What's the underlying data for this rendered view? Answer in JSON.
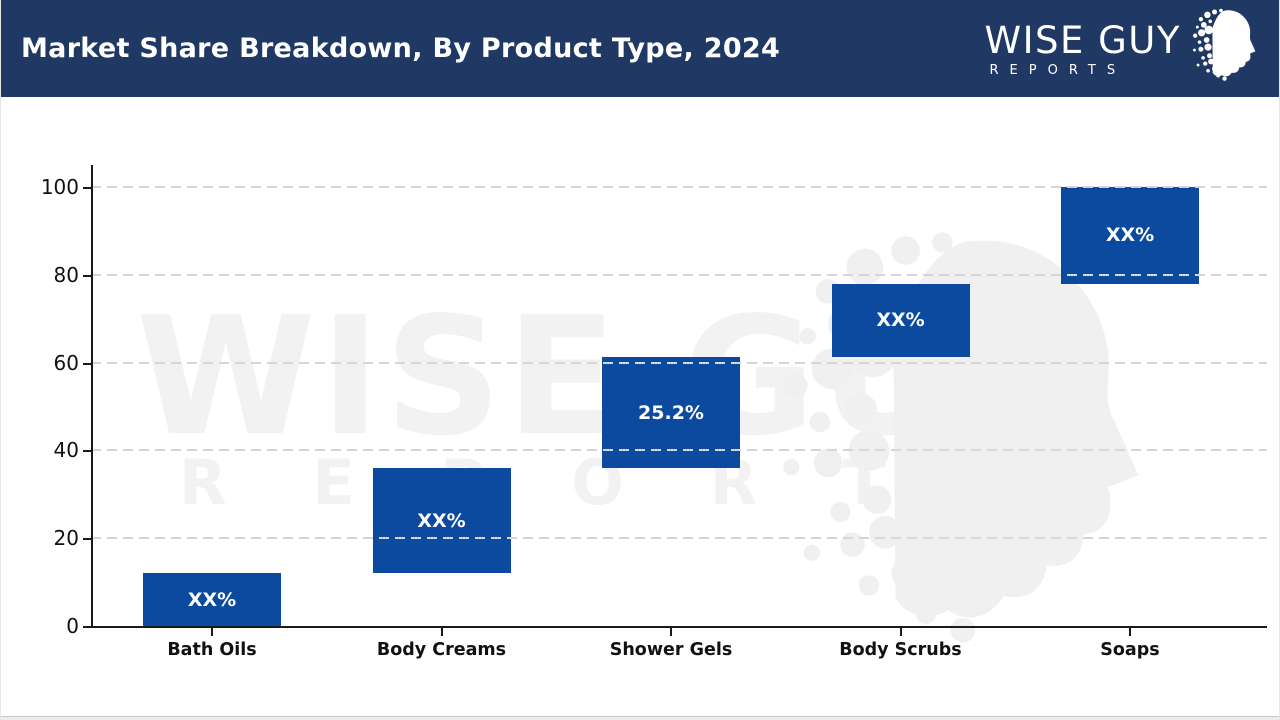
{
  "header": {
    "title": "Market Share Breakdown, By Product Type, 2024",
    "logo": {
      "line1": "WISE GUY",
      "line2": "REPORTS"
    }
  },
  "watermark": {
    "line1": "WISE GUY",
    "line2": "R E P O R T S"
  },
  "colors": {
    "header_bg": "#203864",
    "bar": "#0b4a9f",
    "gridline": "#d6d6d6",
    "watermark": "#f2f2f2"
  },
  "chart_data": {
    "type": "bar",
    "variant": "waterfall",
    "title": "Market Share Breakdown, By Product Type, 2024",
    "xlabel": "",
    "ylabel": "",
    "ylim": [
      0,
      105
    ],
    "yticks": [
      0,
      20,
      40,
      60,
      80,
      100
    ],
    "grid": "horizontal-dashed-above-bars",
    "legend": "none",
    "bar_color": "#0b4a9f",
    "categories": [
      "Bath Oils",
      "Body Creams",
      "Shower Gels",
      "Body Scrubs",
      "Soaps"
    ],
    "bars": [
      {
        "category": "Bath Oils",
        "start": 0,
        "end": 12,
        "value": 12,
        "label": "XX%"
      },
      {
        "category": "Body Creams",
        "start": 12,
        "end": 36,
        "value": 24,
        "label": "XX%"
      },
      {
        "category": "Shower Gels",
        "start": 36,
        "end": 61.2,
        "value": 25.2,
        "label": "25.2%"
      },
      {
        "category": "Body Scrubs",
        "start": 61.2,
        "end": 78,
        "value": 16.8,
        "label": "XX%"
      },
      {
        "category": "Soaps",
        "start": 78,
        "end": 100,
        "value": 22,
        "label": "XX%"
      }
    ]
  }
}
